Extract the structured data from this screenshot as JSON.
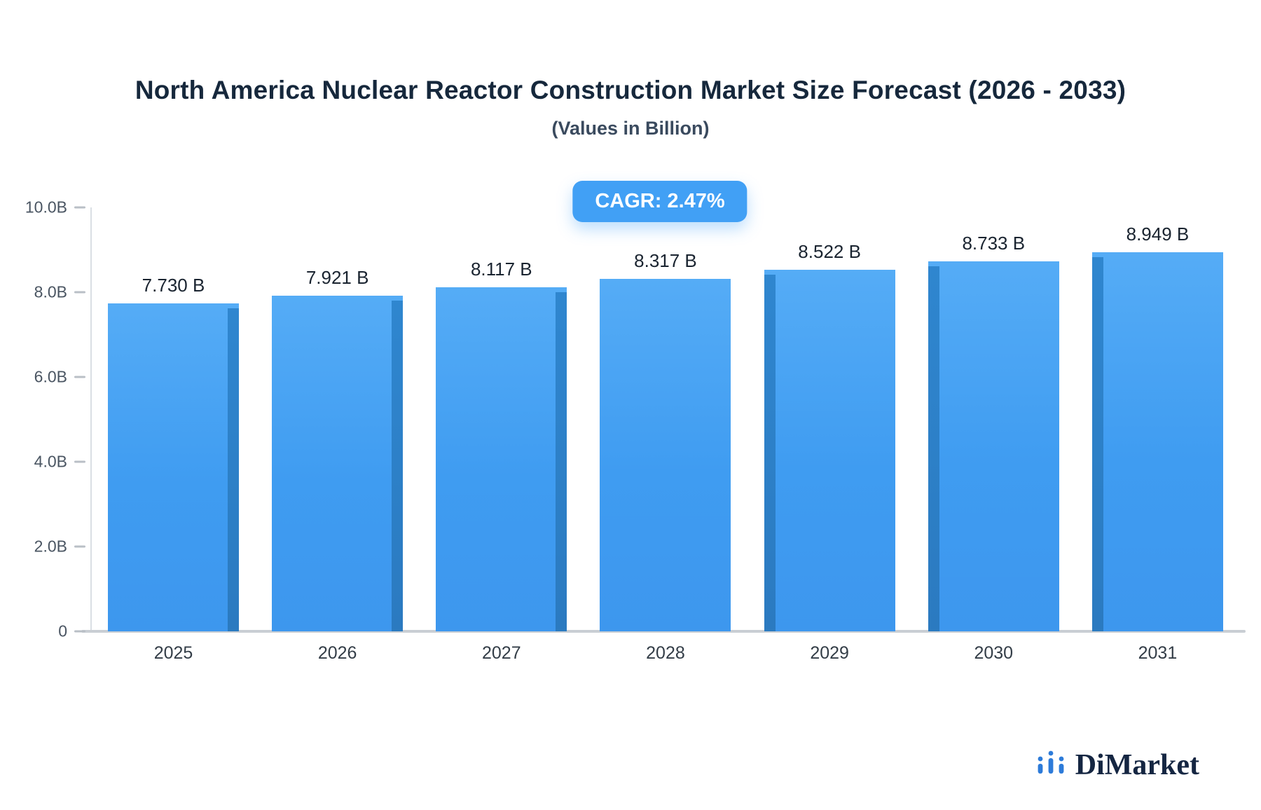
{
  "header": {
    "title": "North America Nuclear Reactor Construction Market Size Forecast (2026 - 2033)",
    "subtitle": "(Values in Billion)",
    "cagr_label": "CAGR: 2.47%"
  },
  "brand": {
    "name": "DiMarket"
  },
  "chart_data": {
    "type": "bar",
    "title": "North America Nuclear Reactor Construction Market Size Forecast (2026 - 2033)",
    "subtitle": "(Values in Billion)",
    "categories": [
      "2025",
      "2026",
      "2027",
      "2028",
      "2029",
      "2030",
      "2031"
    ],
    "values": [
      7.73,
      7.921,
      8.117,
      8.317,
      8.522,
      8.733,
      8.949
    ],
    "value_labels": [
      "7.730 B",
      "7.921 B",
      "8.117 B",
      "8.317 B",
      "8.522 B",
      "8.733 B",
      "8.949 B"
    ],
    "xlabel": "",
    "ylabel": "",
    "ylim": [
      0,
      10
    ],
    "ytick_labels": [
      "10.0B",
      "8.0B",
      "6.0B",
      "4.0B",
      "2.0B",
      "0"
    ],
    "grid": "off",
    "legend": "none",
    "annotation": "CAGR: 2.47%",
    "bar_color": "#3f9cf1",
    "bar_side_color": "#2c7cc2",
    "accent_color": "#41a0f5"
  }
}
